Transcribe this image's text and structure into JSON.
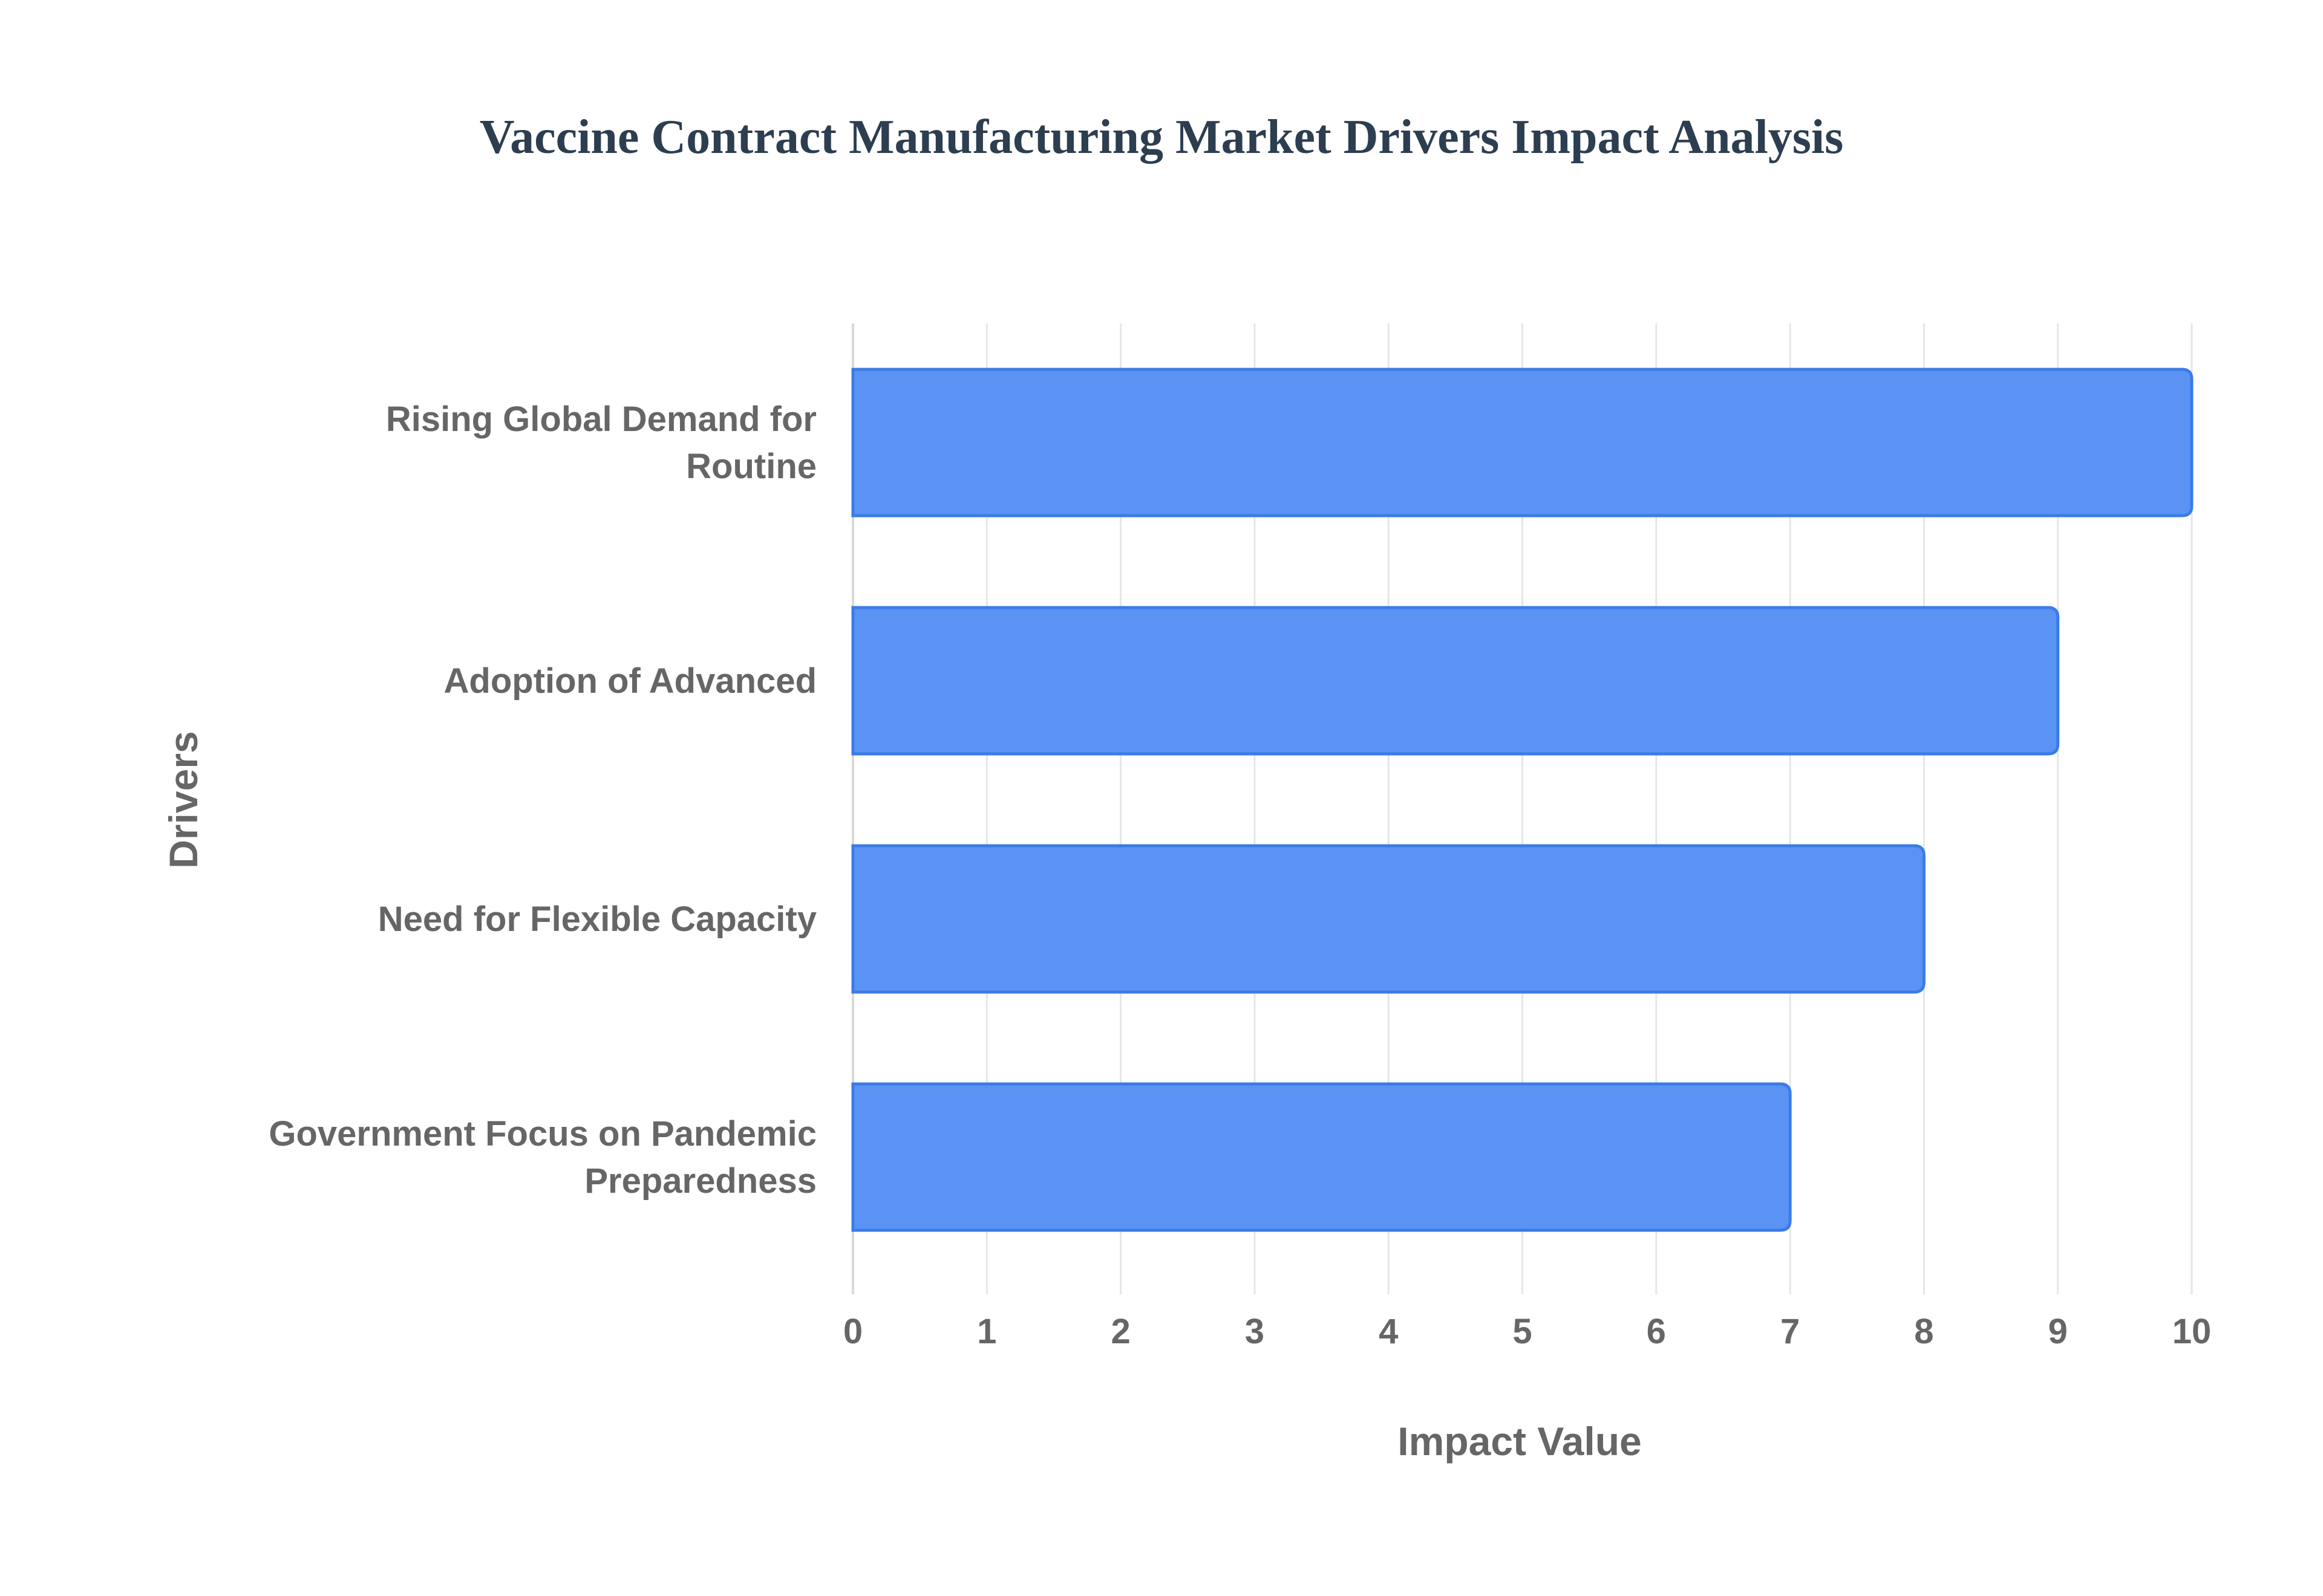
{
  "chart_data": {
    "type": "bar",
    "orientation": "horizontal",
    "title": "Vaccine Contract Manufacturing Market Drivers Impact Analysis",
    "xlabel": "Impact Value",
    "ylabel": "Drivers",
    "categories": [
      [
        "Rising Global Demand for",
        "Routine"
      ],
      [
        "Adoption of Advanced"
      ],
      [
        "Need for Flexible Capacity"
      ],
      [
        "Government Focus on Pandemic",
        "Preparedness"
      ]
    ],
    "values": [
      10,
      9,
      8,
      7
    ],
    "xlim": [
      0,
      10
    ],
    "xticks": [
      "0",
      "1",
      "2",
      "3",
      "4",
      "5",
      "6",
      "7",
      "8",
      "9",
      "10"
    ],
    "grid": true,
    "legend": "none",
    "colors": {
      "bar_fill": "#5b93f5",
      "bar_stroke": "#3b7be6",
      "title": "#2c3e50",
      "text": "#666666",
      "grid": "#e6e6e6",
      "axis": "#d9d9d9"
    }
  }
}
